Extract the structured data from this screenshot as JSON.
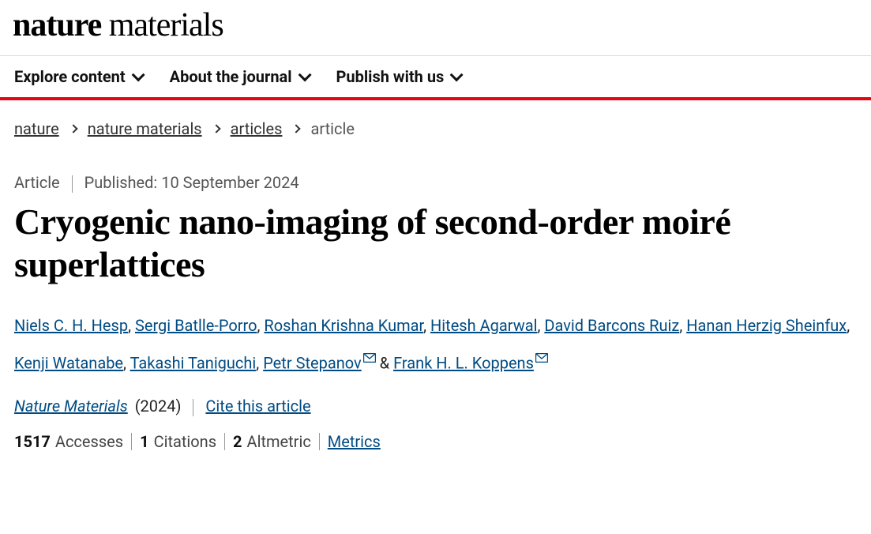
{
  "brand": {
    "bold": "nature",
    "light": "materials"
  },
  "nav": {
    "items": [
      {
        "label": "Explore content"
      },
      {
        "label": "About the journal"
      },
      {
        "label": "Publish with us"
      }
    ]
  },
  "breadcrumb": {
    "links": [
      "nature",
      "nature materials",
      "articles"
    ],
    "current": "article"
  },
  "article": {
    "type": "Article",
    "published_prefix": "Published: ",
    "published_date": "10 September 2024",
    "title": "Cryogenic nano-imaging of second-order moiré superlattices"
  },
  "authors": [
    {
      "name": "Niels C. H. Hesp",
      "corresponding": false
    },
    {
      "name": "Sergi Batlle-Porro",
      "corresponding": false
    },
    {
      "name": "Roshan Krishna Kumar",
      "corresponding": false
    },
    {
      "name": "Hitesh Agarwal",
      "corresponding": false
    },
    {
      "name": "David Barcons Ruiz",
      "corresponding": false
    },
    {
      "name": "Hanan Herzig Sheinfux",
      "corresponding": false
    },
    {
      "name": "Kenji Watanabe",
      "corresponding": false
    },
    {
      "name": "Takashi Taniguchi",
      "corresponding": false
    },
    {
      "name": "Petr Stepanov",
      "corresponding": true
    },
    {
      "name": "Frank H. L. Koppens",
      "corresponding": true
    }
  ],
  "author_separators": {
    "comma": ", ",
    "amp": " & "
  },
  "journal": {
    "name": "Nature Materials",
    "year": "(2024)",
    "cite": "Cite this article"
  },
  "metrics": {
    "accesses_num": "1517",
    "accesses_lbl": "Accesses",
    "citations_num": "1",
    "citations_lbl": "Citations",
    "altmetric_num": "2",
    "altmetric_lbl": "Altmetric",
    "metrics_link": "Metrics"
  },
  "colors": {
    "brand_accent": "#e30613",
    "link": "#004b83",
    "text": "#222222"
  }
}
